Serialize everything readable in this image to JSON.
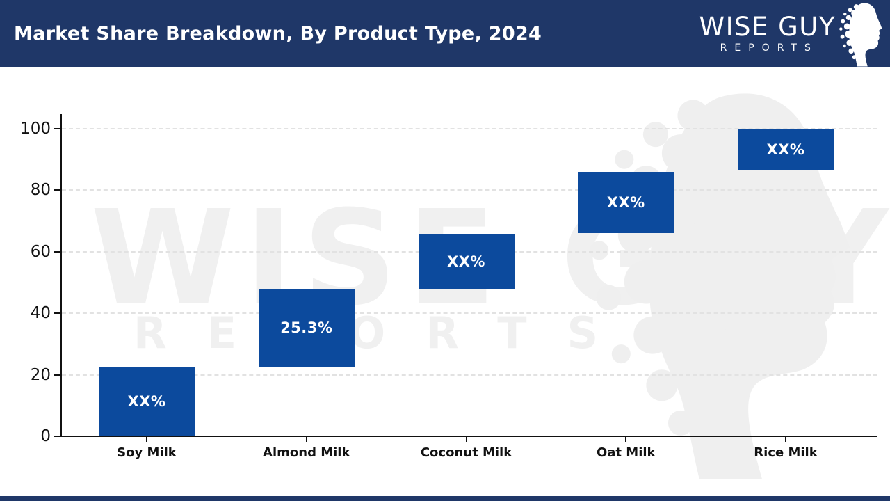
{
  "header": {
    "title": "Market Share Breakdown, By Product Type, 2024",
    "logo": {
      "wordmark": "WISE GUY",
      "subtext": "REPORTS"
    }
  },
  "watermark": {
    "wordmark": "WISE GUY",
    "subtext": "REPORTS"
  },
  "chart_data": {
    "type": "bar",
    "variant": "waterfall",
    "title": "Market Share Breakdown, By Product Type, 2024",
    "xlabel": "",
    "ylabel": "",
    "ylim": [
      0,
      105
    ],
    "yticks": [
      0,
      20,
      40,
      60,
      80,
      100
    ],
    "grid": "horizontal-dashed",
    "legend": "none",
    "bar_color": "#0c4a9d",
    "categories": [
      "Soy Milk",
      "Almond Milk",
      "Coconut Milk",
      "Oat Milk",
      "Rice Milk"
    ],
    "bars": [
      {
        "category": "Soy Milk",
        "start": 0,
        "end": 22.5,
        "label": "XX%"
      },
      {
        "category": "Almond Milk",
        "start": 22.6,
        "end": 47.9,
        "label": "25.3%"
      },
      {
        "category": "Coconut Milk",
        "start": 48.0,
        "end": 65.6,
        "label": "XX%"
      },
      {
        "category": "Oat Milk",
        "start": 66.0,
        "end": 86.0,
        "label": "XX%"
      },
      {
        "category": "Rice Milk",
        "start": 86.5,
        "end": 100.0,
        "label": "XX%"
      }
    ]
  },
  "colors": {
    "header_bg": "#1f3768",
    "footer_bg": "#1f3768",
    "bar": "#0c4a9d",
    "bar_label": "#ffffff",
    "axis": "#111111",
    "gridline": "#e2e2e2",
    "watermark": "#f0f0f0",
    "title_text": "#ffffff"
  }
}
